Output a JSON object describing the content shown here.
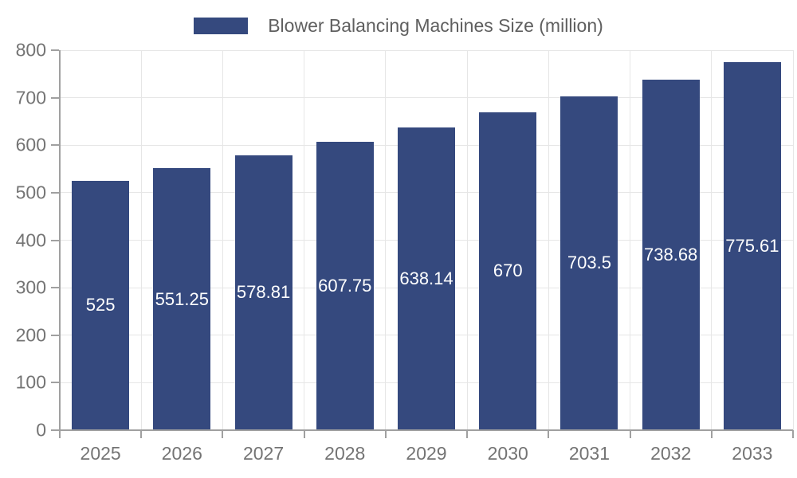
{
  "chart_data": {
    "type": "bar",
    "title": "Blower Balancing Machines Size (million)",
    "categories": [
      "2025",
      "2026",
      "2027",
      "2028",
      "2029",
      "2030",
      "2031",
      "2032",
      "2033"
    ],
    "values": [
      525,
      551.25,
      578.81,
      607.75,
      638.14,
      670,
      703.5,
      738.68,
      775.61
    ],
    "value_labels": [
      "525",
      "551.25",
      "578.81",
      "607.75",
      "638.14",
      "670",
      "703.5",
      "738.68",
      "775.61"
    ],
    "xlabel": "",
    "ylabel": "",
    "ylim": [
      0,
      800
    ],
    "ytick_step": 100,
    "yticks": [
      "0",
      "100",
      "200",
      "300",
      "400",
      "500",
      "600",
      "700",
      "800"
    ],
    "grid": true,
    "legend_position": "top-center",
    "colors": {
      "bar": "#35497e",
      "grid": "#e6e6e6",
      "axis": "#a0a0a0",
      "tick_label": "#747474",
      "legend_text": "#5f5f5f",
      "value_label": "#ffffff",
      "background": "#ffffff"
    }
  }
}
